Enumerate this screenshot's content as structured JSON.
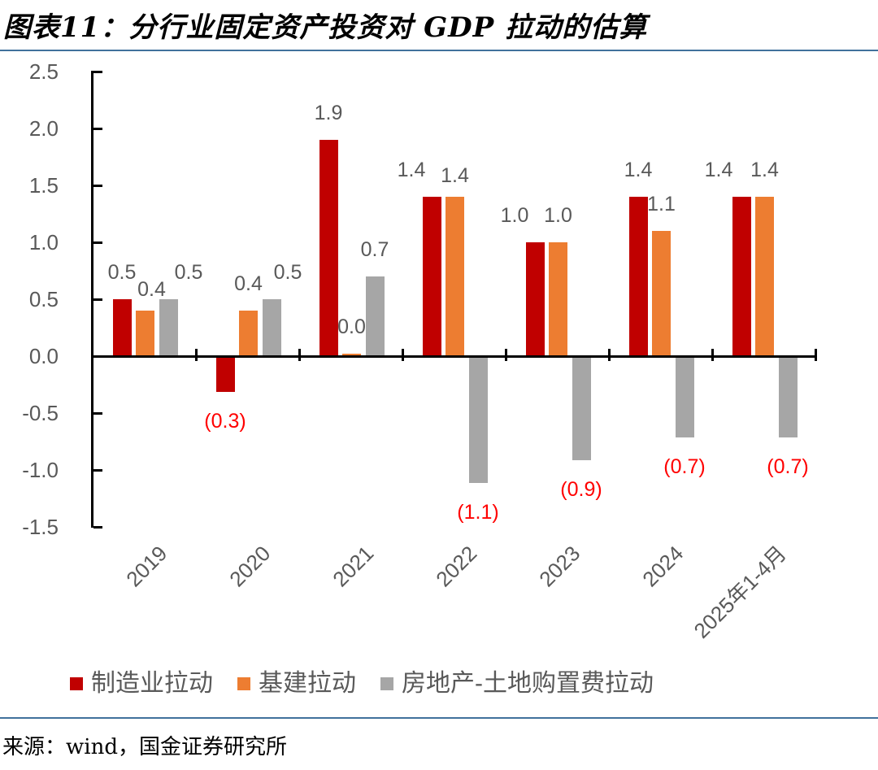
{
  "title": "图表11：分行业固定资产投资对 GDP 拉动的估算",
  "source": "来源：wind，国金证券研究所",
  "colors": {
    "manufacturing_red": "#C00000",
    "infrastructure_orange": "#ED7D31",
    "realestate_gray": "#A6A6A6",
    "axis": "#000000",
    "tick_label": "#595959",
    "data_label": "#595959",
    "negative_label": "#FF0000",
    "legend_text": "#595959",
    "separator_blue": "#41719C"
  },
  "chart_data": {
    "type": "bar",
    "title": "图表11：分行业固定资产投资对 GDP 拉动的估算",
    "categories": [
      "2019",
      "2020",
      "2021",
      "2022",
      "2023",
      "2024",
      "2025年1-4月"
    ],
    "series": [
      {
        "name": "制造业拉动",
        "color": "#C00000",
        "values": [
          0.5,
          -0.3,
          1.9,
          1.4,
          1.0,
          1.4,
          1.4
        ],
        "labels": [
          "0.5",
          "(0.3)",
          "1.9",
          "1.4",
          "1.0",
          "1.4",
          "1.4"
        ]
      },
      {
        "name": "基建拉动",
        "color": "#ED7D31",
        "values": [
          0.4,
          0.4,
          0.0,
          1.4,
          1.0,
          1.1,
          1.4
        ],
        "labels": [
          "0.4",
          "0.4",
          "0.0",
          "1.4",
          "1.0",
          "1.1",
          "1.4"
        ]
      },
      {
        "name": "房地产-土地购置费拉动",
        "color": "#A6A6A6",
        "values": [
          0.5,
          0.5,
          0.7,
          -1.1,
          -0.9,
          -0.7,
          -0.7
        ],
        "labels": [
          "0.5",
          "0.5",
          "0.7",
          "(1.1)",
          "(0.9)",
          "(0.7)",
          "(0.7)"
        ]
      }
    ],
    "ylim": [
      -1.5,
      2.5
    ],
    "ytick_labels": [
      "2.5",
      "2.0",
      "1.5",
      "1.0",
      "0.5",
      "0.0",
      "-0.5",
      "-1.0",
      "-1.5"
    ],
    "xlabel": "",
    "ylabel": "",
    "grid": false,
    "legend_position": "bottom",
    "negative_label_style": "red parentheses below bar"
  }
}
